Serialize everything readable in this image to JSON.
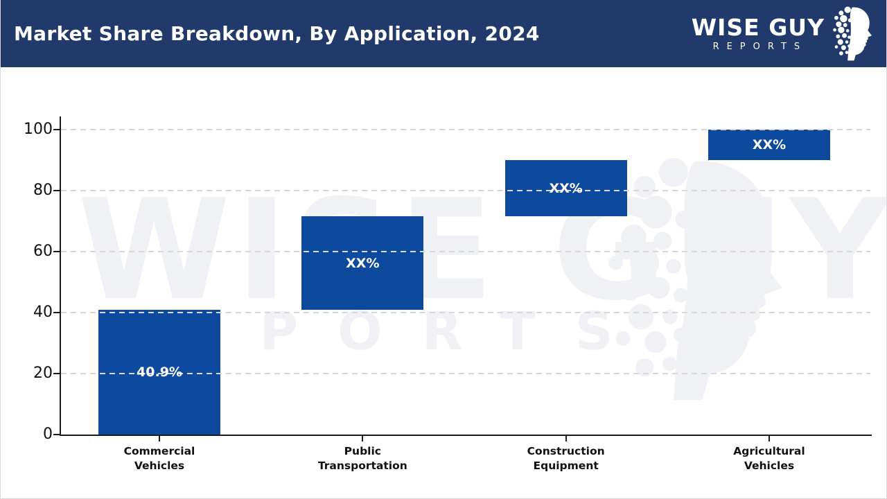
{
  "page": {
    "background": "#ffffff",
    "frame_border_color": "#d9d9d9"
  },
  "header": {
    "background": "#213a6b",
    "title": "Market Share Breakdown, By Application, 2024",
    "logo": {
      "name": "WISE GUY",
      "tagline": "REPORTS",
      "head_icon": "dotted-face-profile"
    }
  },
  "watermark": {
    "line1": "WISE GUY",
    "line2": "REPORTS",
    "head_icon": "dotted-face-profile",
    "color": "#f0f1f4"
  },
  "chart_data": {
    "type": "waterfall",
    "title": "Market Share Breakdown, By Application, 2024",
    "categories": [
      [
        "Commercial",
        "Vehicles"
      ],
      [
        "Public",
        "Transportation"
      ],
      [
        "Construction",
        "Equipment"
      ],
      [
        "Agricultural",
        "Vehicles"
      ]
    ],
    "bars": [
      {
        "category": "Commercial Vehicles",
        "start": 0,
        "end": 40.9,
        "label": "40.9%"
      },
      {
        "category": "Public Transportation",
        "start": 40.9,
        "end": 71.5,
        "label": "XX%"
      },
      {
        "category": "Construction Equipment",
        "start": 71.5,
        "end": 90,
        "label": "XX%"
      },
      {
        "category": "Agricultural Vehicles",
        "start": 90,
        "end": 100,
        "label": "XX%"
      }
    ],
    "ylim": [
      0,
      100
    ],
    "yticks": [
      0,
      20,
      40,
      60,
      80,
      100
    ],
    "grid": {
      "orientation": "horizontal",
      "style": "dashed",
      "color": "#d8d8d8",
      "drawn_above_bars": true
    },
    "bar_color": "#0d4a9e",
    "bar_label_color": "#ffffff",
    "axis_color": "#1a1a1a",
    "xlabel": "",
    "ylabel": ""
  }
}
